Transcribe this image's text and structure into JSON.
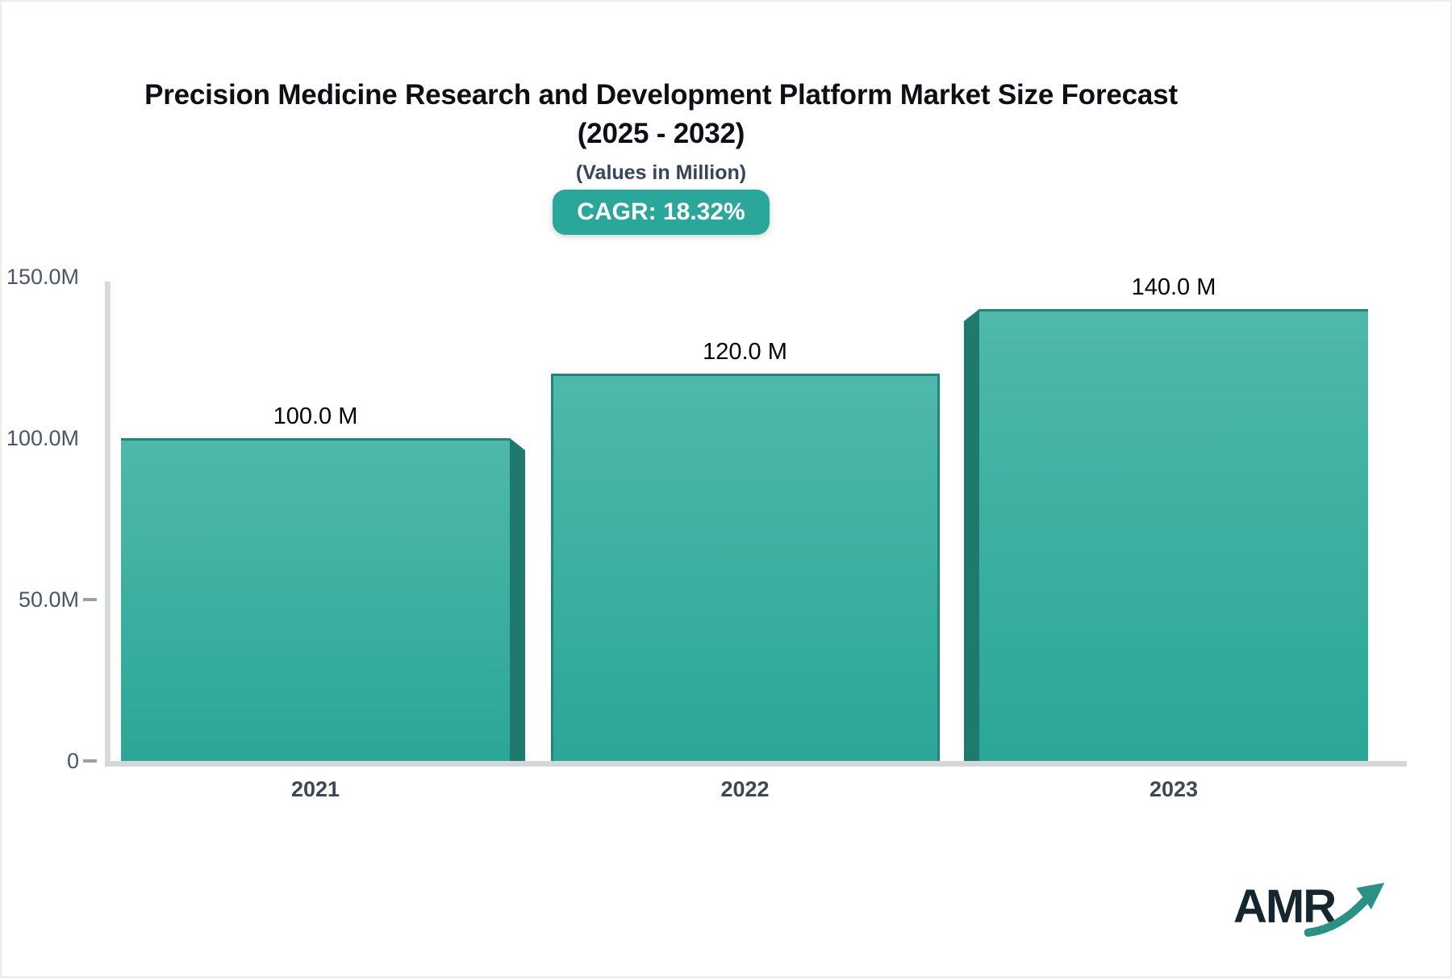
{
  "header": {
    "title_line1": "Precision Medicine Research and Development Platform Market Size Forecast",
    "title_line2": "(2025 - 2032)",
    "subtitle": "(Values in Million)",
    "cagr_badge": "CAGR: 18.32%"
  },
  "chart_data": {
    "type": "bar",
    "title": "Precision Medicine Research and Development Platform Market Size Forecast (2025 - 2032)",
    "unit_note": "Values in Million",
    "cagr_label": "CAGR: 18.32%",
    "categories": [
      "2021",
      "2022",
      "2023"
    ],
    "values": [
      100,
      120,
      140
    ],
    "value_labels": [
      "100.0 M",
      "120.0 M",
      "140.0 M"
    ],
    "ylim": [
      0,
      150
    ],
    "yticks": [
      {
        "value": 0,
        "label": "0",
        "dash": true
      },
      {
        "value": 50,
        "label": "50.0M",
        "dash": true
      },
      {
        "value": 100,
        "label": "100.0M",
        "dash": false
      },
      {
        "value": 150,
        "label": "150.0M",
        "dash": false
      }
    ],
    "grid": false,
    "legend": "none",
    "bar_color_top": "#4FB8AA",
    "bar_color_bottom": "#2BA697",
    "bar_side_color": "#1F7A6E",
    "accent_color": "#2AA79A"
  },
  "logo": {
    "text": "AMR",
    "arrow_icon": "trend-up-arrow"
  }
}
